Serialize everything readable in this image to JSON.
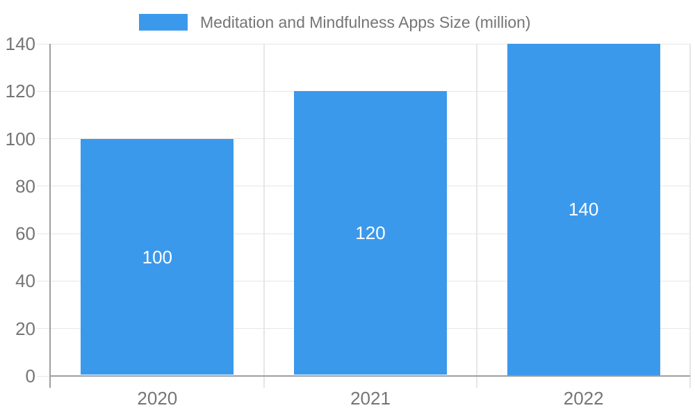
{
  "legend": {
    "label": "Meditation and Mindfulness Apps Size (million)"
  },
  "chart_data": {
    "type": "bar",
    "title": "Meditation and Mindfulness Apps Size (million)",
    "categories": [
      "2020",
      "2021",
      "2022"
    ],
    "values": [
      100,
      120,
      140
    ],
    "bar_labels": [
      "100",
      "120",
      "140"
    ],
    "xlabel": "",
    "ylabel": "",
    "ylim": [
      0,
      140
    ],
    "yticks": [
      0,
      20,
      40,
      60,
      80,
      100,
      120,
      140
    ],
    "grid": true,
    "legend_position": "top-center",
    "colors": {
      "series": "#3B99EC",
      "axis_text": "#757575",
      "gridline": "#E6E6E6",
      "axis_line": "#9E9E9E",
      "bar_label_text": "#FFFFFF",
      "background": "#FFFFFF"
    }
  }
}
